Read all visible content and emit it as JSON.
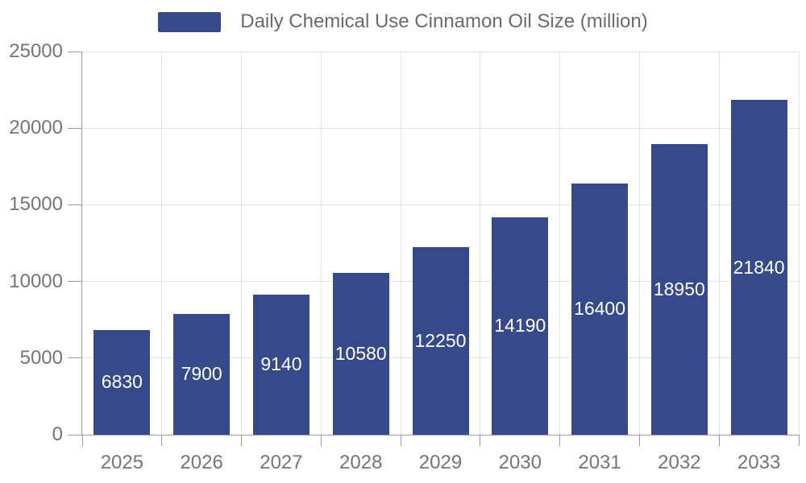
{
  "chart_data": {
    "type": "bar",
    "title": "Daily Chemical Use Cinnamon Oil Size (million)",
    "categories": [
      "2025",
      "2026",
      "2027",
      "2028",
      "2029",
      "2030",
      "2031",
      "2032",
      "2033"
    ],
    "series": [
      {
        "name": "Daily Chemical Use Cinnamon Oil Size (million)",
        "values": [
          6830,
          7900,
          9140,
          10580,
          12250,
          14190,
          16400,
          18950,
          21840
        ]
      }
    ],
    "xlabel": "",
    "ylabel": "",
    "ylim": [
      0,
      25000
    ],
    "yticks": [
      0,
      5000,
      10000,
      15000,
      20000,
      25000
    ],
    "grid": true,
    "legend_position": "top",
    "value_labels": "inside-center"
  },
  "style": {
    "bar_color": "#36498B",
    "grid_color": "#E2E2E2",
    "axis_color": "#999999",
    "tick_label_color": "#757575",
    "legend_text_color": "#6B6B6B",
    "value_label_color": "#FFFFFF",
    "background_color": "#FFFFFF"
  }
}
